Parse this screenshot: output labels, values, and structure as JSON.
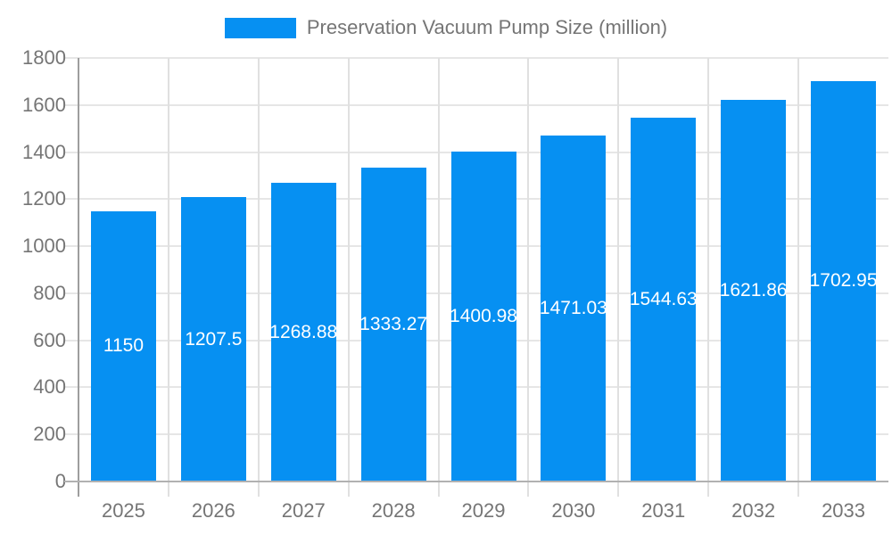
{
  "legend": {
    "label": "Preservation Vacuum Pump Size (million)"
  },
  "chart_data": {
    "type": "bar",
    "title": "Preservation Vacuum Pump Size (million)",
    "categories": [
      "2025",
      "2026",
      "2027",
      "2028",
      "2029",
      "2030",
      "2031",
      "2032",
      "2033"
    ],
    "values": [
      1150,
      1207.5,
      1268.88,
      1333.27,
      1400.98,
      1471.03,
      1544.63,
      1621.86,
      1702.95
    ],
    "value_labels": [
      "1150",
      "1207.5",
      "1268.88",
      "1333.27",
      "1400.98",
      "1471.03",
      "1544.63",
      "1621.86",
      "1702.95"
    ],
    "xlabel": "",
    "ylabel": "",
    "ylim": [
      0,
      1800
    ],
    "ytick_interval": 200,
    "ytick_labels": [
      "0",
      "200",
      "400",
      "600",
      "800",
      "1000",
      "1200",
      "1400",
      "1600",
      "1800"
    ],
    "grid": true,
    "legend_position": "top",
    "colors": {
      "bar": "#0690f2",
      "grid_line": "#e6e6e6",
      "category_line": "#e0e0e0",
      "baseline": "#b1b1b1",
      "axis_line": "#9e9e9e",
      "tick_text": "#757575",
      "legend_text": "#757575",
      "value_label_text": "#ffffff"
    }
  }
}
